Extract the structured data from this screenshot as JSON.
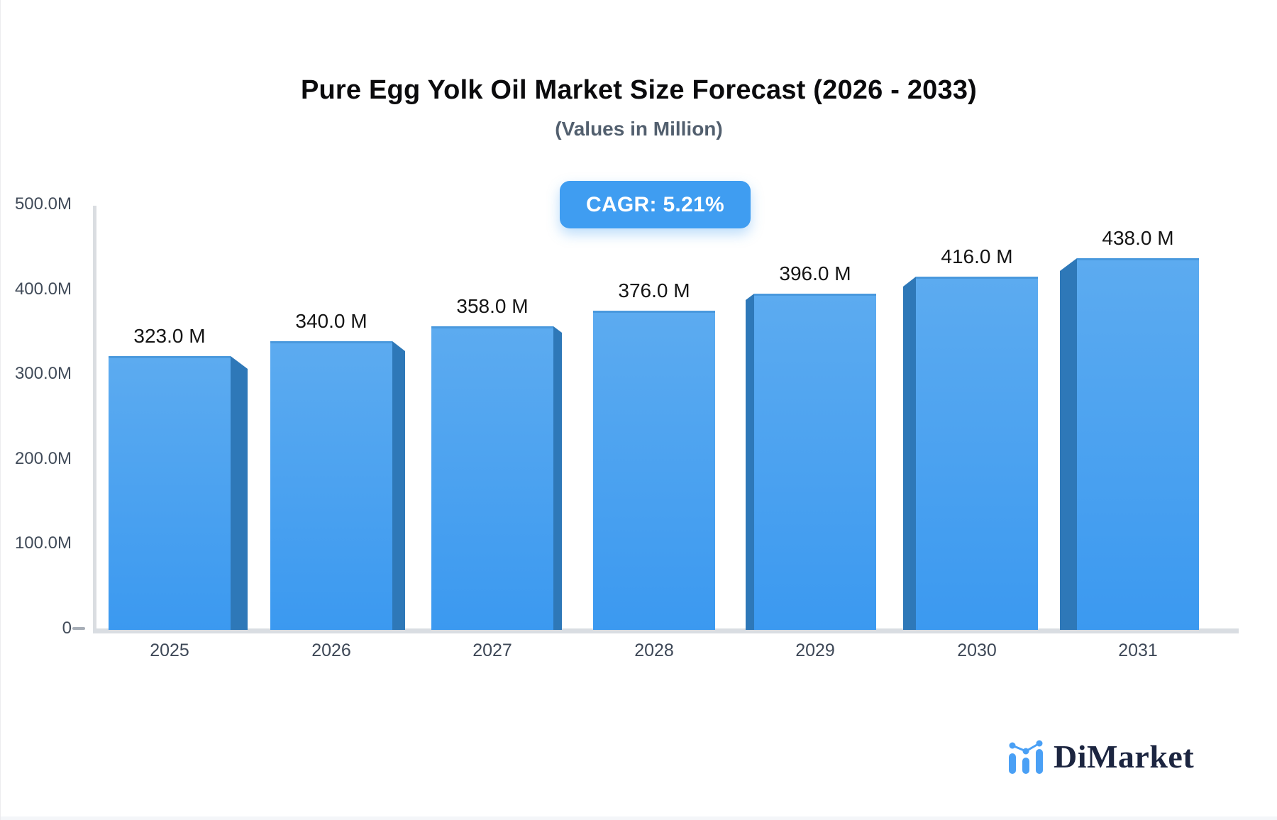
{
  "title": "Pure Egg Yolk Oil Market Size Forecast (2026 - 2033)",
  "subtitle": "(Values in Million)",
  "cagr_badge": "CAGR: 5.21%",
  "logo": {
    "text": "DiMarket",
    "icon": "bar-line-chart-icon"
  },
  "colors": {
    "accent_blue": "#3f9df1",
    "bar_top": "#5cabf0",
    "bar_bottom": "#3b99f0",
    "bar_side": "#2e78b8",
    "bar_top_edge": "#4a99dd",
    "axis_gray": "#dadde1",
    "tick_text": "#414b59",
    "logo_navy": "#1c2540"
  },
  "chart_data": {
    "type": "bar",
    "title": "Pure Egg Yolk Oil Market Size Forecast (2026 - 2033)",
    "subtitle": "(Values in Million)",
    "xlabel": "",
    "ylabel": "",
    "categories": [
      "2025",
      "2026",
      "2027",
      "2028",
      "2029",
      "2030",
      "2031"
    ],
    "values": [
      323,
      340,
      358,
      376,
      396,
      416,
      438
    ],
    "value_labels": [
      "323.0 M",
      "340.0 M",
      "358.0 M",
      "376.0 M",
      "396.0 M",
      "416.0 M",
      "438.0 M"
    ],
    "y_ticks": [
      {
        "value": 0,
        "label": "0"
      },
      {
        "value": 100,
        "label": "100.0M"
      },
      {
        "value": 200,
        "label": "200.0M"
      },
      {
        "value": 300,
        "label": "300.0M"
      },
      {
        "value": 400,
        "label": "400.0M"
      },
      {
        "value": 500,
        "label": "500.0M"
      }
    ],
    "ylim": [
      0,
      500
    ],
    "grid": false,
    "legend": false,
    "style": "3d-extruded-bars"
  }
}
